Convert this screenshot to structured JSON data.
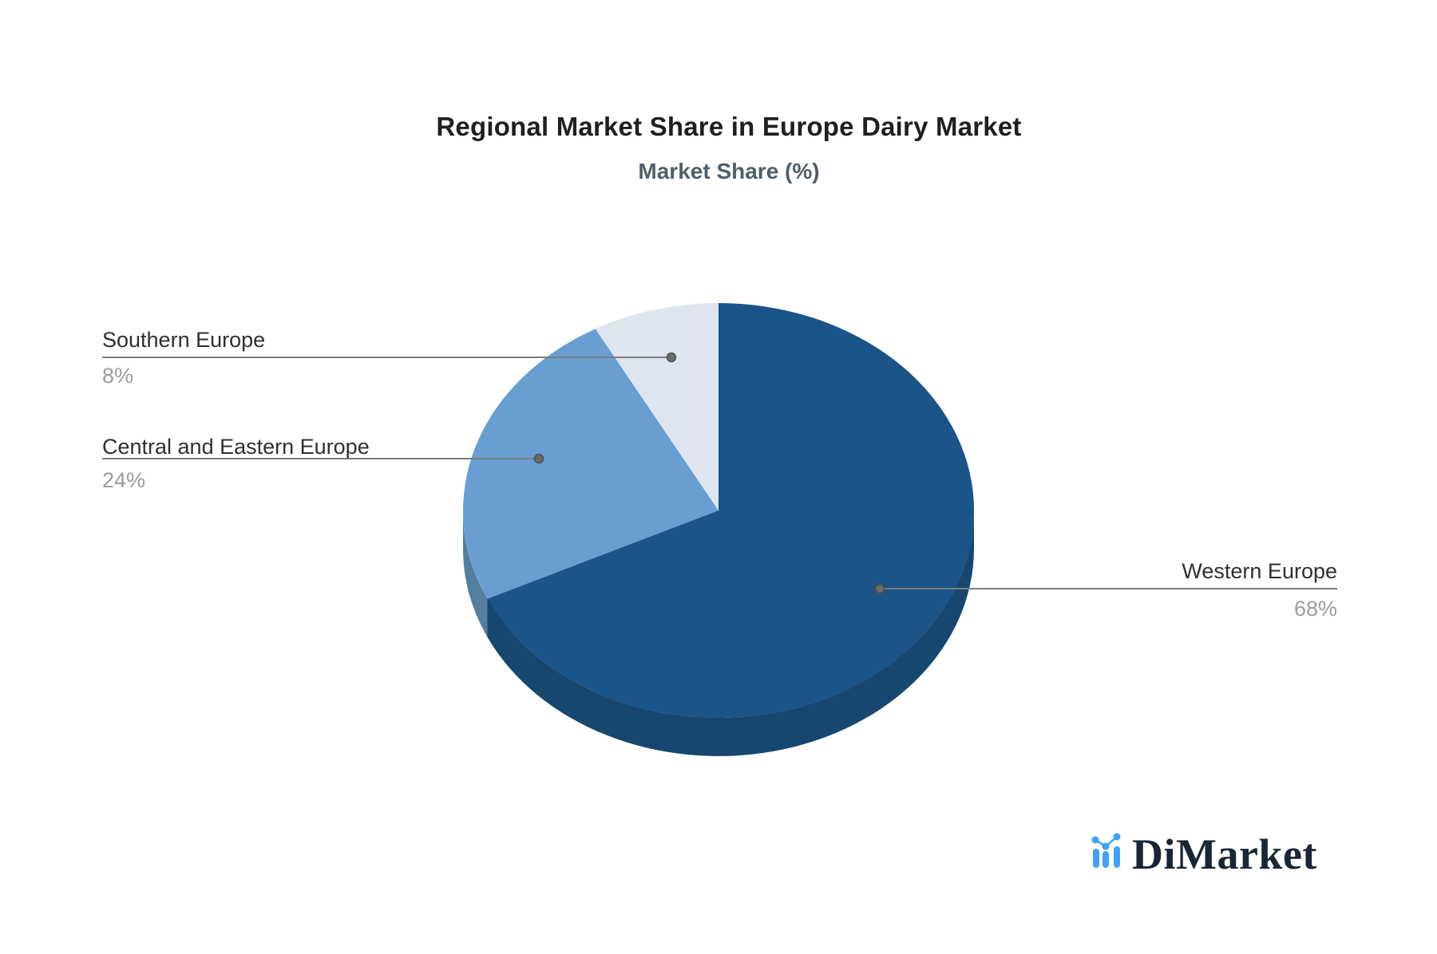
{
  "page": {
    "background": "#ffffff"
  },
  "chart_data": {
    "type": "pie",
    "style": "3d",
    "title": "Regional Market Share in Europe Dairy Market",
    "subtitle": "Market Share (%)",
    "title_color": "#1f1f1f",
    "subtitle_color": "#515e69",
    "start_angle_deg": 0,
    "direction": "clockwise",
    "slices": [
      {
        "label": "Western Europe",
        "value": 68,
        "display": "68%",
        "color": "#1b5488",
        "side_color": "#17476f"
      },
      {
        "label": "Central and Eastern Europe",
        "value": 24,
        "display": "24%",
        "color": "#699ed2",
        "side_color": "#547f9e"
      },
      {
        "label": "Southern Europe",
        "value": 8,
        "display": "8%",
        "color": "#dee5ef",
        "side_color": "#bcc9da"
      }
    ],
    "label_color": "#303030",
    "value_color": "#9c9c9c",
    "callout_line_color": "#7d7d7d",
    "callout_dot_color": "#6b6b6b",
    "callout_dot_ring_color": "#4f4f4f"
  },
  "branding": {
    "logo_text": "DiMarket",
    "logo_text_color": "#1a2633",
    "logo_accent_color": "#3fa2f7"
  }
}
